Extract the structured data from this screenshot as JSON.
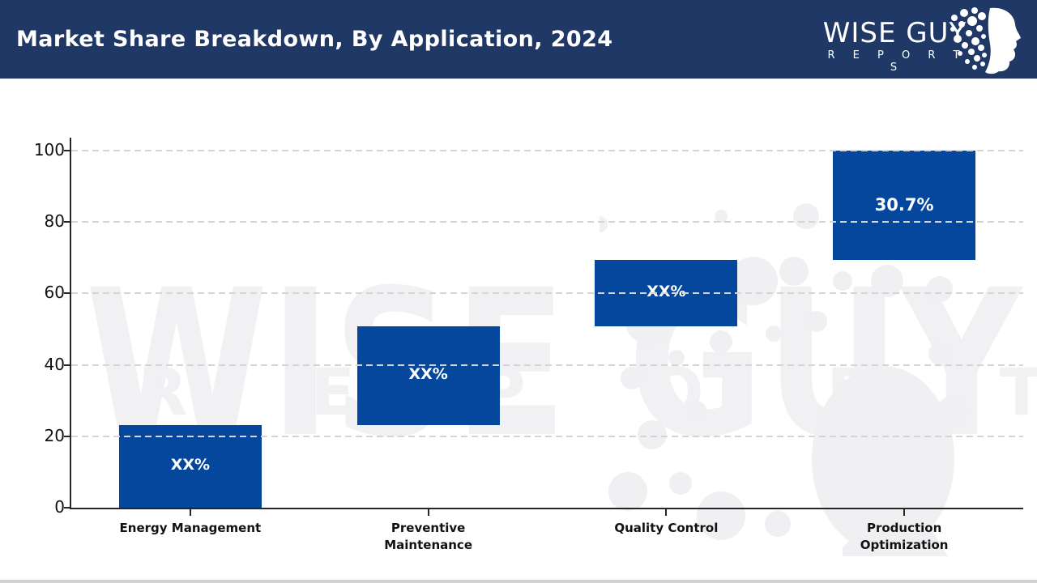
{
  "header": {
    "title": "Market Share Breakdown, By Application, 2024",
    "bg_color": "#1f3866",
    "logo": {
      "line1": "WISE GUY",
      "line2": "R E P O R T S"
    }
  },
  "watermark": {
    "line1": "WISE GUY",
    "line2": "R E P O R T S"
  },
  "colors": {
    "header_bg": "#1f3866",
    "bar": "#05479c",
    "grid": "#d5d5d5",
    "axis": "#262626",
    "bar_label_text": "#ffffff",
    "tick_text": "#111111",
    "watermark": "#f1f1f4"
  },
  "chart_data": {
    "type": "bar",
    "subtype": "waterfall",
    "title": "Market Share Breakdown, By Application, 2024",
    "xlabel": "",
    "ylabel": "",
    "ylim": [
      0,
      100
    ],
    "yticks": [
      0,
      20,
      40,
      60,
      80,
      100
    ],
    "grid": true,
    "grid_style": "dashed",
    "legend": "none",
    "bar_color": "#05479c",
    "categories": [
      "Energy Management",
      "Preventive\nMaintenance",
      "Quality Control",
      "Production\nOptimization"
    ],
    "segments": [
      {
        "category": "Energy Management",
        "start": 0,
        "end": 23.1,
        "value": 23.1,
        "label": "XX%"
      },
      {
        "category": "Preventive Maintenance",
        "start": 23.1,
        "end": 50.8,
        "value": 27.7,
        "label": "XX%"
      },
      {
        "category": "Quality Control",
        "start": 50.8,
        "end": 69.3,
        "value": 18.5,
        "label": "XX%"
      },
      {
        "category": "Production Optimization",
        "start": 69.3,
        "end": 100,
        "value": 30.7,
        "label": "30.7%"
      }
    ]
  }
}
